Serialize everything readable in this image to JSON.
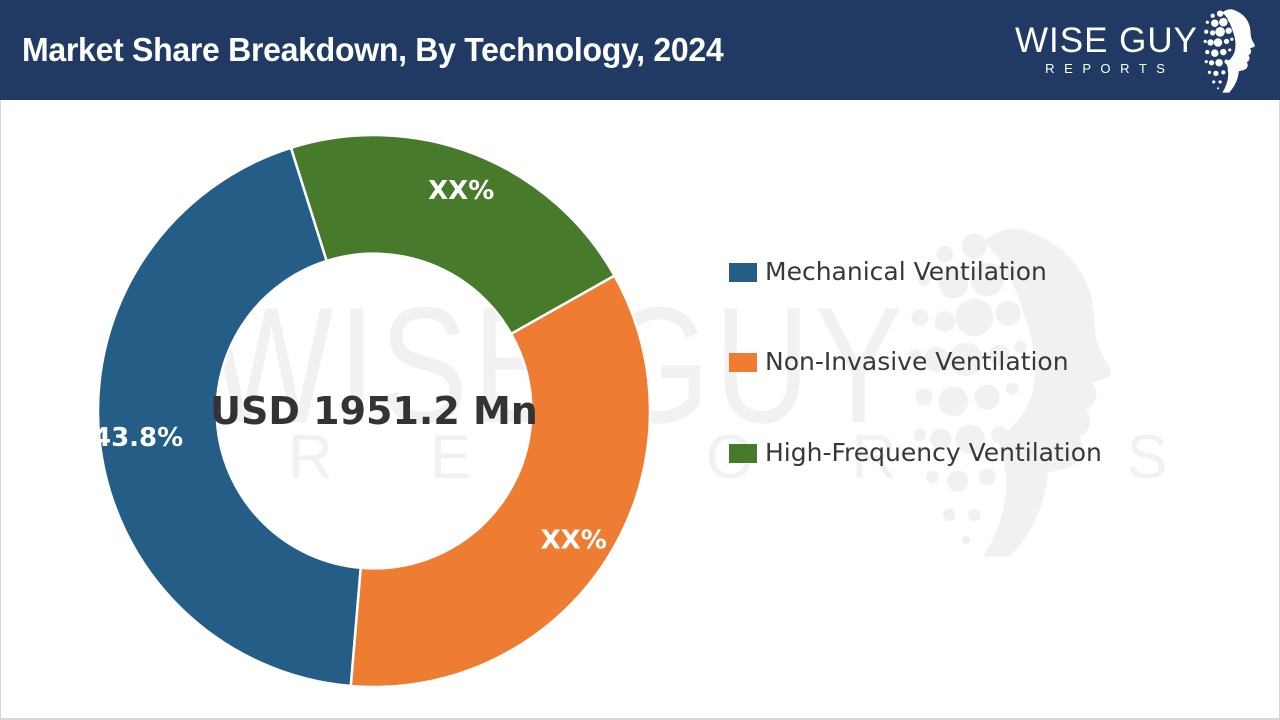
{
  "header": {
    "title": "Market Share Breakdown, By Technology, 2024",
    "background_color": "#203a64",
    "logo": {
      "line1": "WISE GUY",
      "line2": "R E P O R T S"
    }
  },
  "watermark": {
    "line1": "WISE GUY",
    "line2": "R E P O R T S",
    "color": "#f1f1f1"
  },
  "chart_data": {
    "type": "pie",
    "subtype": "donut",
    "title": "Market Share Breakdown, By Technology, 2024",
    "center_label": "USD 1951.2 Mn",
    "categories": [
      "Mechanical Ventilation",
      "Non-Invasive Ventilation",
      "High-Frequency Ventilation"
    ],
    "values": [
      43.8,
      34.5,
      21.7
    ],
    "slice_labels": [
      "43.8%",
      "XX%",
      "XX%"
    ],
    "colors": [
      "#245d85",
      "#ee7c33",
      "#477a2b"
    ],
    "start_angle_deg": 107.5,
    "direction": "counterclockwise",
    "inner_radius_ratio": 0.57,
    "label_distance_ratio": 0.86,
    "slice_label_color": "#ffffff",
    "center_label_color": "#333333",
    "legend_position": "right",
    "grid": false
  },
  "legend": {
    "items": [
      {
        "label": "Mechanical Ventilation",
        "color": "#245d85"
      },
      {
        "label": "Non-Invasive Ventilation",
        "color": "#ee7c33"
      },
      {
        "label": "High-Frequency Ventilation",
        "color": "#477a2b"
      }
    ]
  }
}
